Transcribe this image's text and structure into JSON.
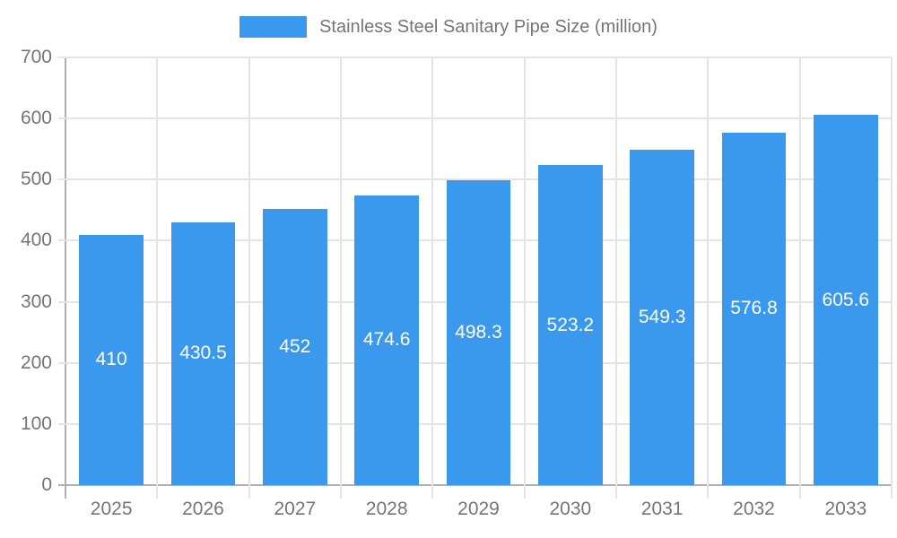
{
  "chart_data": {
    "type": "bar",
    "title": "Stainless Steel Sanitary Pipe Size (million)",
    "legend": {
      "position": "top",
      "items": [
        {
          "label": "Stainless Steel Sanitary Pipe Size (million)"
        }
      ]
    },
    "categories": [
      "2025",
      "2026",
      "2027",
      "2028",
      "2029",
      "2030",
      "2031",
      "2032",
      "2033"
    ],
    "series": [
      {
        "name": "Stainless Steel Sanitary Pipe Size (million)",
        "values": [
          410,
          430.5,
          452,
          474.6,
          498.3,
          523.2,
          549.3,
          576.8,
          605.6
        ]
      }
    ],
    "value_labels": [
      "410",
      "430.5",
      "452",
      "474.6",
      "498.3",
      "523.2",
      "549.3",
      "576.8",
      "605.6"
    ],
    "xlabel": "",
    "ylabel": "",
    "ylim": [
      0,
      700
    ],
    "yticks": [
      0,
      100,
      200,
      300,
      400,
      500,
      600,
      700
    ],
    "grid": true,
    "bar_width_fraction": 0.7,
    "colors": {
      "bar": "#3A99EC",
      "grid": "#E4E4E4",
      "axis": "#B0B0B0",
      "text": "#757575",
      "value_label": "#FFFFFF",
      "background": "#FFFFFF"
    }
  }
}
